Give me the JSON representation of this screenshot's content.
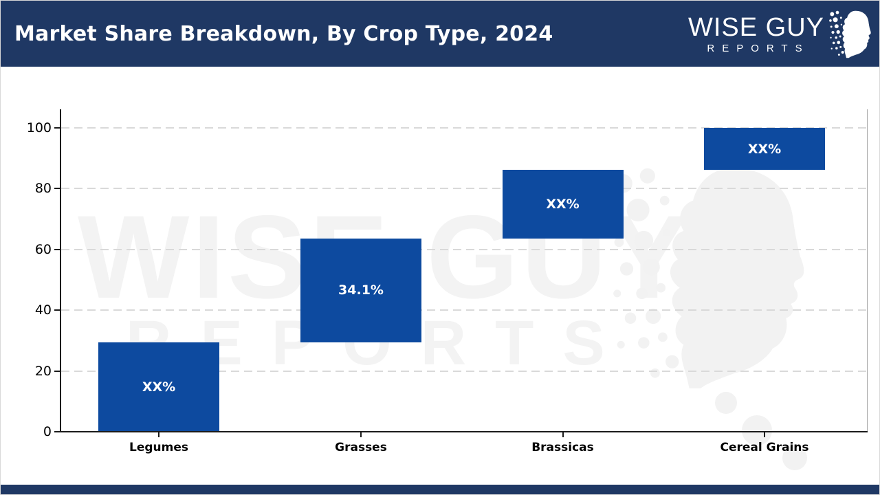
{
  "header": {
    "title": "Market Share Breakdown, By Crop Type, 2024",
    "background_color": "#1F3864",
    "logo": {
      "line1": "WISE GUY",
      "line2": "REPORTS",
      "icon": "dotted-head-profile-icon"
    }
  },
  "footer": {
    "background_color": "#1F3864"
  },
  "watermark": {
    "line1": "WISE GUY",
    "line2": "REPORTS",
    "icon": "dotted-head-profile-icon",
    "color": "#f2f2f2"
  },
  "chart_data": {
    "type": "bar",
    "subtype": "floating-waterfall",
    "title": "Market Share Breakdown, By Crop Type, 2024",
    "categories": [
      "Legumes",
      "Grasses",
      "Brassicas",
      "Cereal Grains"
    ],
    "series": [
      {
        "name": "Market share (%)",
        "segments": [
          {
            "category": "Legumes",
            "start": 0,
            "end": 29.5,
            "height": 29.5,
            "label": "XX%"
          },
          {
            "category": "Grasses",
            "start": 29.5,
            "end": 63.6,
            "height": 34.1,
            "label": "34.1%"
          },
          {
            "category": "Brassicas",
            "start": 63.6,
            "end": 86.1,
            "height": 22.5,
            "label": "XX%"
          },
          {
            "category": "Cereal Grains",
            "start": 86.1,
            "end": 100,
            "height": 13.9,
            "label": "XX%"
          }
        ]
      }
    ],
    "xlabel": "",
    "ylabel": "",
    "ylim": [
      0,
      100
    ],
    "yticks": [
      0,
      20,
      40,
      60,
      80,
      100
    ],
    "grid": "horizontal-dashed",
    "legend_position": "none",
    "bar_color": "#0D4A9F",
    "bar_label_color": "#ffffff",
    "axis_color": "#1a1a1a"
  }
}
